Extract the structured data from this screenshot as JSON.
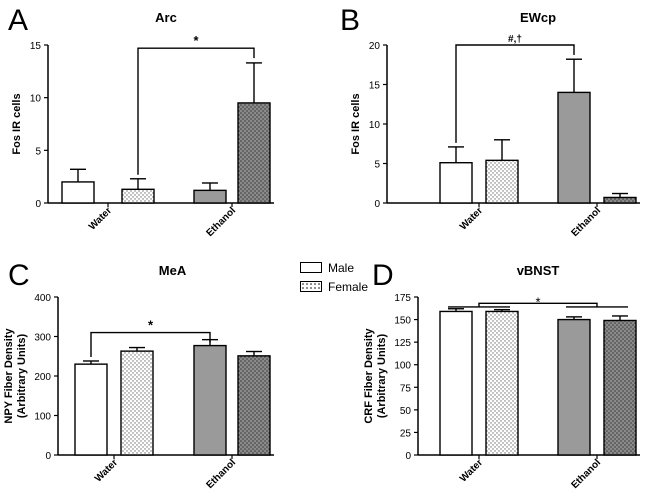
{
  "colors": {
    "male_water": "#ffffff",
    "female_water": "#e8e8e8",
    "male_ethanol": "#9a9a9a",
    "female_ethanol": "#7a7a7a"
  },
  "legend": {
    "male_label": "Male",
    "female_label": "Female"
  },
  "chart_data": [
    {
      "panel": "A",
      "type": "bar",
      "title": "Arc",
      "ylabel": "Fos IR cells",
      "xlabel": "",
      "ylim": [
        0,
        15
      ],
      "yticks": [
        0,
        5,
        10,
        15
      ],
      "categories": [
        "Water",
        "Ethanol"
      ],
      "series": [
        {
          "name": "Male",
          "values": [
            2.0,
            1.2
          ],
          "errors": [
            1.2,
            0.7
          ]
        },
        {
          "name": "Female",
          "values": [
            1.3,
            9.5
          ],
          "errors": [
            1.0,
            3.8
          ]
        }
      ],
      "annotation": {
        "text": "*",
        "from": [
          0,
          1
        ],
        "to": [
          1,
          1
        ],
        "level": 14.7
      },
      "grid": false
    },
    {
      "panel": "B",
      "type": "bar",
      "title": "EWcp",
      "ylabel": "Fos IR cells",
      "xlabel": "",
      "ylim": [
        0,
        20
      ],
      "yticks": [
        0,
        5,
        10,
        15,
        20
      ],
      "categories": [
        "Water",
        "Ethanol"
      ],
      "series": [
        {
          "name": "Male",
          "values": [
            5.1,
            14.0
          ],
          "errors": [
            2.0,
            4.2
          ]
        },
        {
          "name": "Female",
          "values": [
            5.4,
            0.7
          ],
          "errors": [
            2.6,
            0.5
          ]
        }
      ],
      "annotation": {
        "text": "#,†",
        "from": [
          0,
          0
        ],
        "to": [
          1,
          0
        ],
        "level": 20.0
      },
      "grid": false
    },
    {
      "panel": "C",
      "type": "bar",
      "title": "MeA",
      "ylabel": "NPY Fiber Density\n(Arbitrary Units)",
      "xlabel": "",
      "ylim": [
        0,
        400
      ],
      "yticks": [
        0,
        100,
        200,
        300,
        400
      ],
      "categories": [
        "Water",
        "Ethanol"
      ],
      "series": [
        {
          "name": "Male",
          "values": [
            230,
            277
          ],
          "errors": [
            8,
            15
          ]
        },
        {
          "name": "Female",
          "values": [
            263,
            251
          ],
          "errors": [
            9,
            11
          ]
        }
      ],
      "annotation": {
        "text": "*",
        "from": [
          0,
          0
        ],
        "to": [
          1,
          0
        ],
        "level": 310
      },
      "grid": false
    },
    {
      "panel": "D",
      "type": "bar",
      "title": "vBNST",
      "ylabel": "CRF Fiber Density\n(Arbitrary Units)",
      "xlabel": "",
      "ylim": [
        0,
        175
      ],
      "yticks": [
        0,
        25,
        50,
        75,
        100,
        125,
        150,
        175
      ],
      "categories": [
        "Water",
        "Ethanol"
      ],
      "series": [
        {
          "name": "Male",
          "values": [
            159,
            150
          ],
          "errors": [
            3,
            3
          ]
        },
        {
          "name": "Female",
          "values": [
            159,
            149
          ],
          "errors": [
            2,
            5
          ]
        }
      ],
      "annotation": {
        "text": "*",
        "grouped": true,
        "level": 168,
        "cap_level": 164
      },
      "grid": false
    }
  ]
}
